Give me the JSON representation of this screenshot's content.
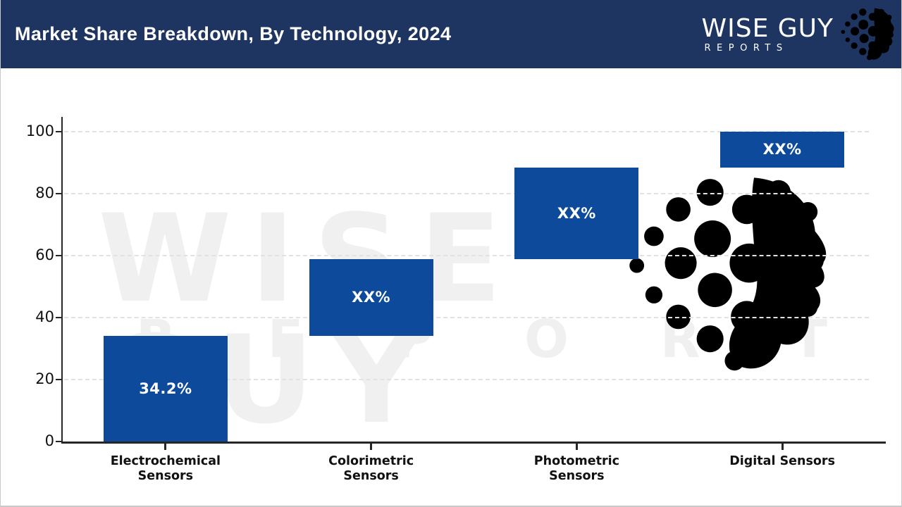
{
  "header": {
    "title": "Market Share Breakdown, By Technology, 2024",
    "logo": {
      "wordmark": "WISE GUY",
      "subtext": "REPORTS"
    }
  },
  "watermark": {
    "wordmark": "WISE GUY",
    "subtext": "R E P O R T S"
  },
  "icons": {
    "logo_head": "dotted-head-profile",
    "watermark_head": "dotted-head-profile"
  },
  "colors": {
    "header_bg": "#1e3562",
    "bar_fill": "#0d4a9c",
    "bar_label": "#ffffff",
    "axis": "#262626",
    "grid": "#e2e2e2",
    "tick_label": "#111111",
    "watermark": "#f0f0f0",
    "frame_border": "#c9c9c9"
  },
  "chart_data": {
    "type": "bar",
    "subtype": "waterfall",
    "title": "Market Share Breakdown, By Technology, 2024",
    "xlabel": "",
    "ylabel": "",
    "ylim": [
      0,
      100
    ],
    "yticks": [
      0,
      20,
      40,
      60,
      80,
      100
    ],
    "grid": "horizontal-dashed",
    "legend": "none",
    "categories": [
      "Electrochemical\nSensors",
      "Colorimetric\nSensors",
      "Photometric\nSensors",
      "Digital Sensors"
    ],
    "bars": [
      {
        "category": "Electrochemical Sensors",
        "start": 0,
        "end": 34.2,
        "label": "34.2%"
      },
      {
        "category": "Colorimetric Sensors",
        "start": 34.2,
        "end": 58.8,
        "label": "XX%"
      },
      {
        "category": "Photometric Sensors",
        "start": 58.8,
        "end": 88.4,
        "label": "XX%"
      },
      {
        "category": "Digital Sensors",
        "start": 88.5,
        "end": 100,
        "label": "XX%"
      }
    ]
  }
}
